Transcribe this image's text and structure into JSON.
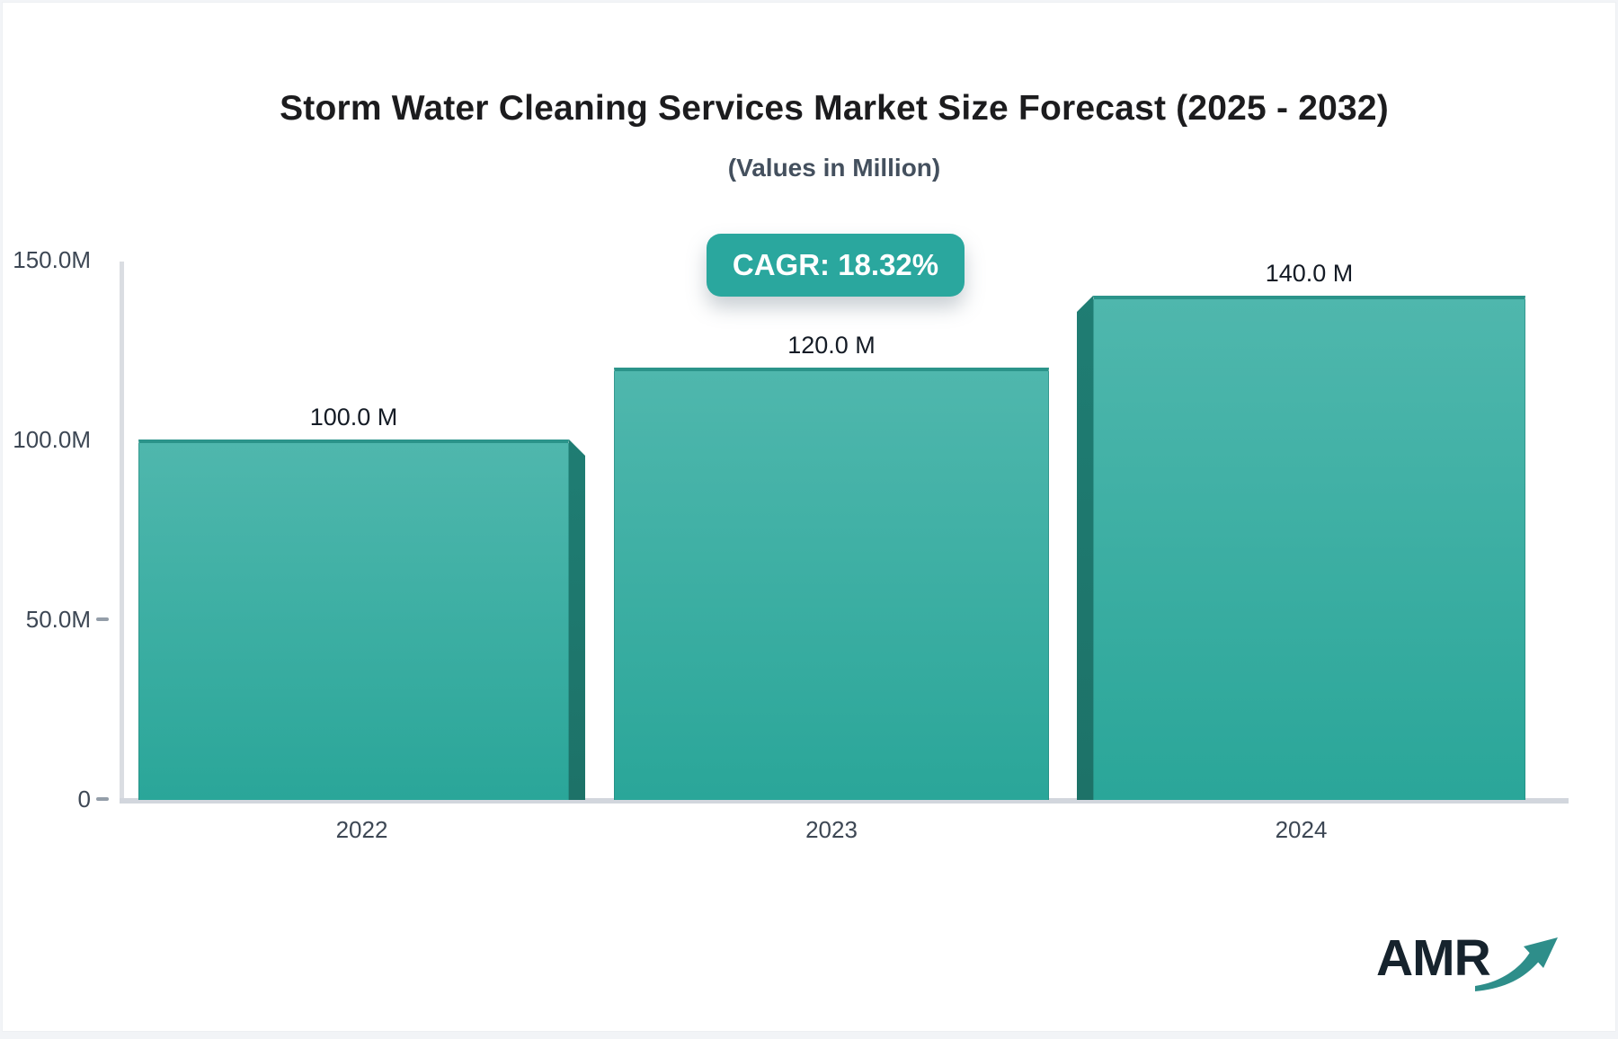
{
  "header": {
    "title": "Storm Water Cleaning Services Market Size Forecast (2025 - 2032)",
    "subtitle": "(Values in Million)"
  },
  "badge": {
    "label": "CAGR: 18.32%"
  },
  "logo": {
    "text": "AMR",
    "arrow_icon": "trend-up-arrow-icon"
  },
  "colors": {
    "bar_gradient_top": "#4fb7ad",
    "bar_gradient_bottom": "#2aa699",
    "bar_top_edge": "#2b948a",
    "bar_3d_side": "#1e7b71",
    "badge_background": "#2aa79e",
    "axis_line": "#d2d6dd",
    "axis_text": "#3d4754",
    "title_text": "#1c1c1e",
    "logo_text": "#16232d",
    "logo_arrow": "#2e8e8a"
  },
  "chart_data": {
    "type": "bar",
    "title": "Storm Water Cleaning Services Market Size Forecast (2025 - 2032)",
    "subtitle": "(Values in Million)",
    "unit": "Million (M)",
    "cagr_label": "CAGR: 18.32%",
    "cagr_percent": 18.32,
    "categories": [
      "2022",
      "2023",
      "2024"
    ],
    "values": [
      100.0,
      120.0,
      140.0
    ],
    "bar_value_labels": [
      "100.0 M",
      "120.0 M",
      "140.0 M"
    ],
    "yticks": [
      {
        "value": 0,
        "label": "0",
        "dash": true
      },
      {
        "value": 50,
        "label": "50.0M",
        "dash": true
      },
      {
        "value": 100,
        "label": "100.0M",
        "dash": false
      },
      {
        "value": 150,
        "label": "150.0M",
        "dash": false
      }
    ],
    "ylim": [
      0,
      150
    ],
    "grid": false,
    "legend": false,
    "bar_style": "3d-beveled-gradient"
  }
}
